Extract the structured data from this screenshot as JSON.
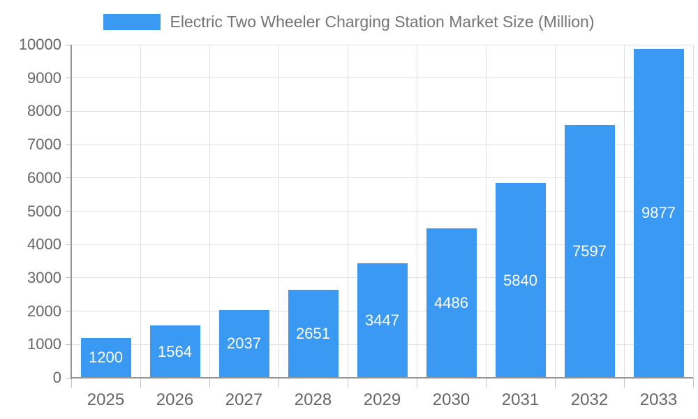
{
  "legend": {
    "label": "Electric Two Wheeler Charging Station Market Size (Million)"
  },
  "chart_data": {
    "type": "bar",
    "title": "Electric Two Wheeler Charging Station Market Size (Million)",
    "categories": [
      "2025",
      "2026",
      "2027",
      "2028",
      "2029",
      "2030",
      "2031",
      "2032",
      "2033"
    ],
    "values": [
      1200,
      1564,
      2037,
      2651,
      3447,
      4486,
      5840,
      7597,
      9877
    ],
    "xlabel": "",
    "ylabel": "",
    "ylim": [
      0,
      10000
    ],
    "ytick_step": 1000,
    "grid": true,
    "legend_position": "top",
    "value_labels": "inside-center",
    "colors": {
      "bar": "#3a99f2",
      "grid": "#e0e0e0",
      "axis": "#949494",
      "tick": "#c2c2c2",
      "axis_label": "#666666",
      "value_label": "#ffffff",
      "legend_text": "#757575",
      "background": "#ffffff"
    }
  }
}
